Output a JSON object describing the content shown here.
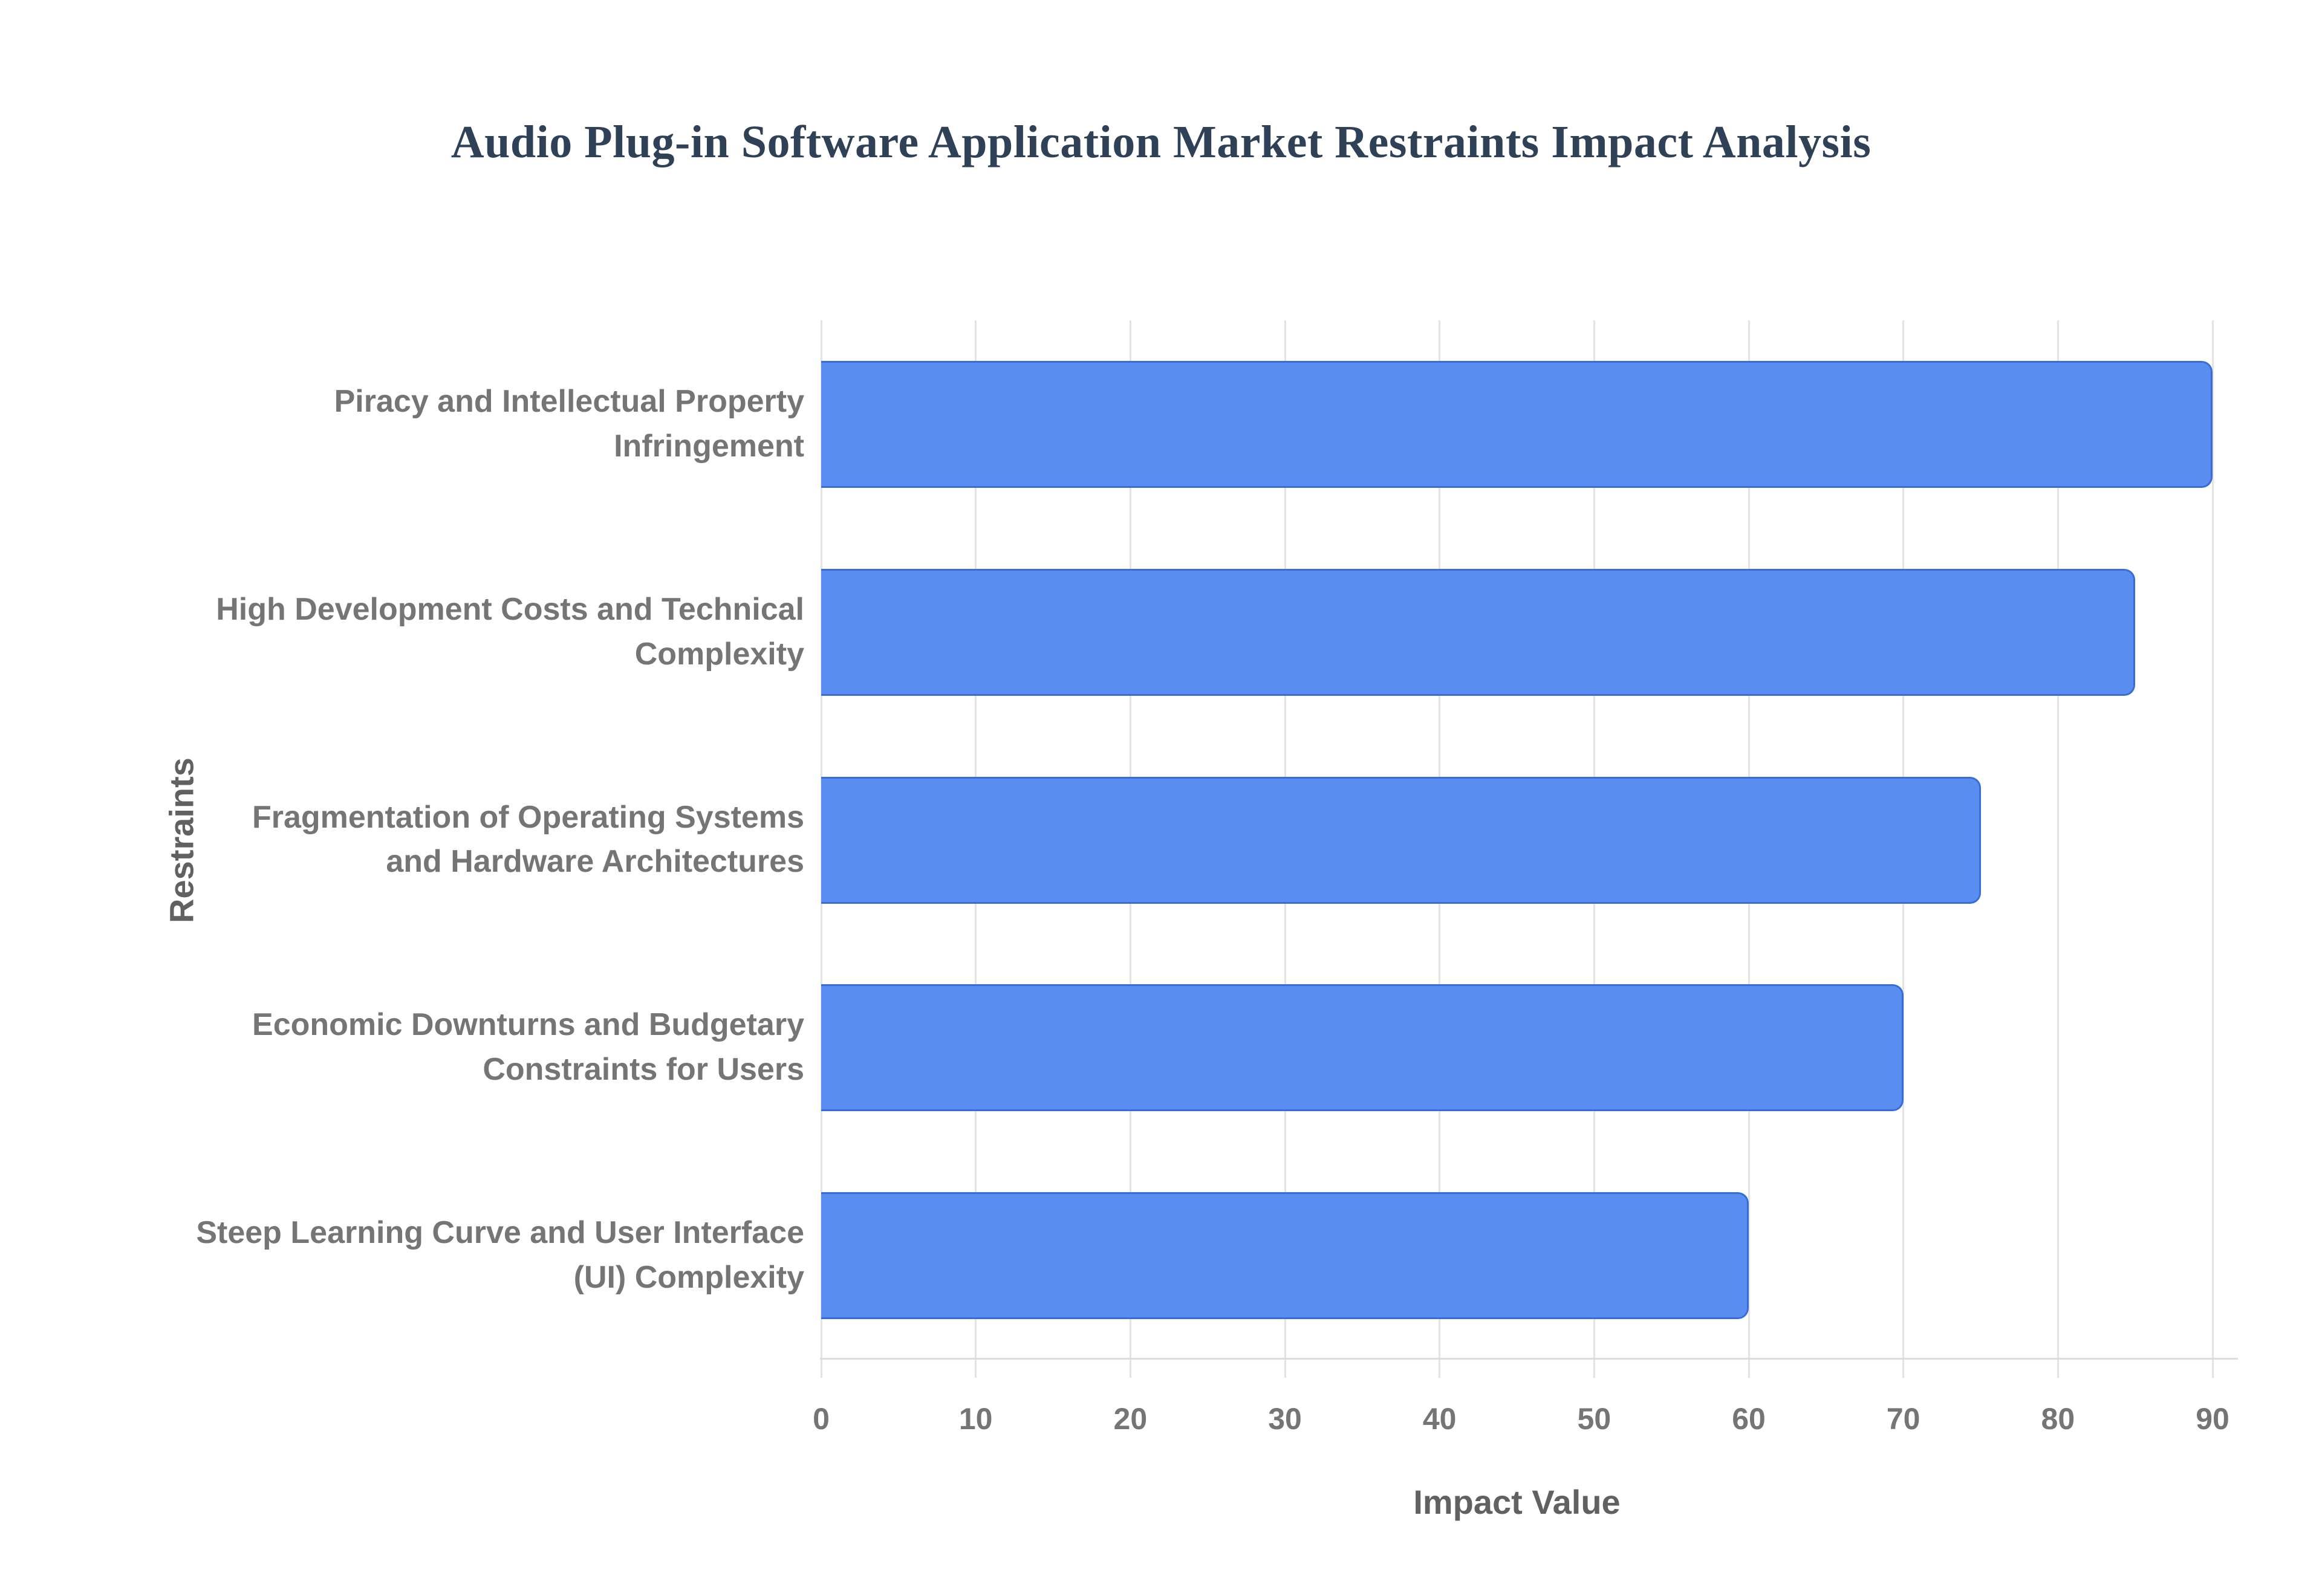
{
  "title": "Audio Plug-in Software Application Market Restraints Impact Analysis",
  "chart_data": {
    "type": "bar",
    "orientation": "horizontal",
    "title": "Audio Plug-in Software Application Market Restraints Impact Analysis",
    "categories": [
      "Piracy and Intellectual Property Infringement",
      "High Development Costs and Technical Complexity",
      "Fragmentation of Operating Systems and Hardware Architectures",
      "Economic Downturns and Budgetary Constraints for Users",
      "Steep Learning Curve and User Interface (UI) Complexity"
    ],
    "values": [
      90,
      85,
      75,
      70,
      60
    ],
    "xlabel": "Impact Value",
    "ylabel": "Restraints",
    "xlim": [
      0,
      90
    ],
    "xticks": [
      0,
      10,
      20,
      30,
      40,
      50,
      60,
      70,
      80,
      90
    ],
    "grid": true,
    "legend": false,
    "colors": {
      "bar_fill": "#5a8df0",
      "bar_border": "#3a6cd9",
      "gridline": "#e3e3e3",
      "axis_line": "#dcdcdc",
      "title_text": "#2e4156",
      "label_text": "#757575",
      "axis_title_text": "#616161"
    }
  }
}
